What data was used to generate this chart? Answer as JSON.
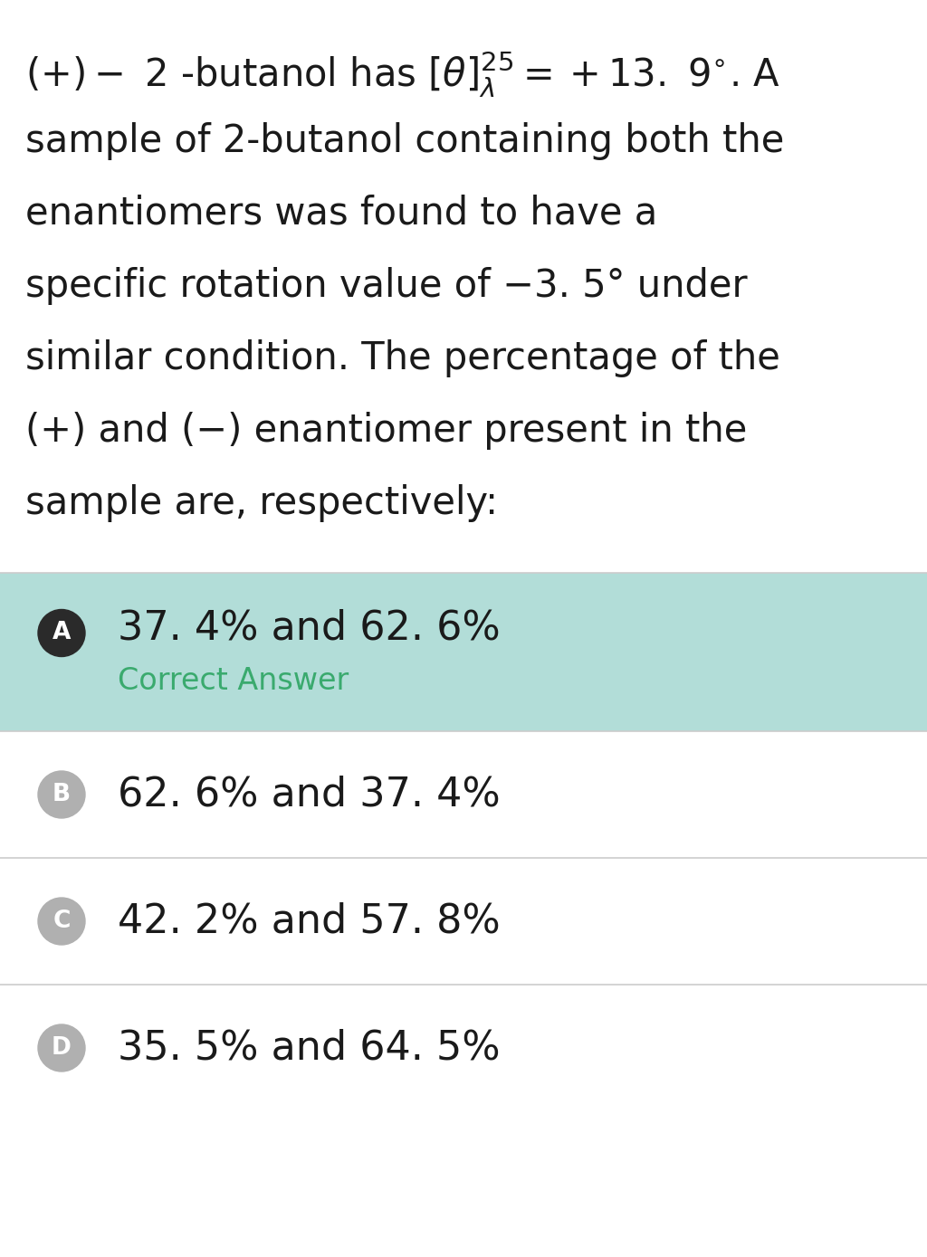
{
  "bg_color": "#f8f8f8",
  "white": "#ffffff",
  "teal_bg": "#b2ddd8",
  "question_text_lines": [
    "(+)− 2 -butanol has $[\\theta]_{\\lambda}^{25} = +13.\\, 9^{\\circ}$. A",
    "sample of 2-butanol containing both the",
    "enantiomers was found to have a",
    "specific rotation value of −3. 5° under",
    "similar condition. The percentage of the",
    "(+) and (−) enantiomer present in the",
    "sample are, respectively:"
  ],
  "options": [
    {
      "label": "A",
      "text": "37. 4% and 62. 6%",
      "correct": true
    },
    {
      "label": "B",
      "text": "62. 6% and 37. 4%",
      "correct": false
    },
    {
      "label": "C",
      "text": "42. 2% and 57. 8%",
      "correct": false
    },
    {
      "label": "D",
      "text": "35. 5% and 64. 5%",
      "correct": false
    }
  ],
  "correct_answer_text": "Correct Answer",
  "correct_color": "#3aaa6e",
  "label_color_correct": "#2a2a2a",
  "label_color_incorrect": "#b0b0b0",
  "text_color": "#1a1a1a",
  "separator_color": "#cccccc",
  "font_size_question": 30,
  "font_size_option": 32,
  "font_size_correct": 24,
  "font_size_label": 19
}
